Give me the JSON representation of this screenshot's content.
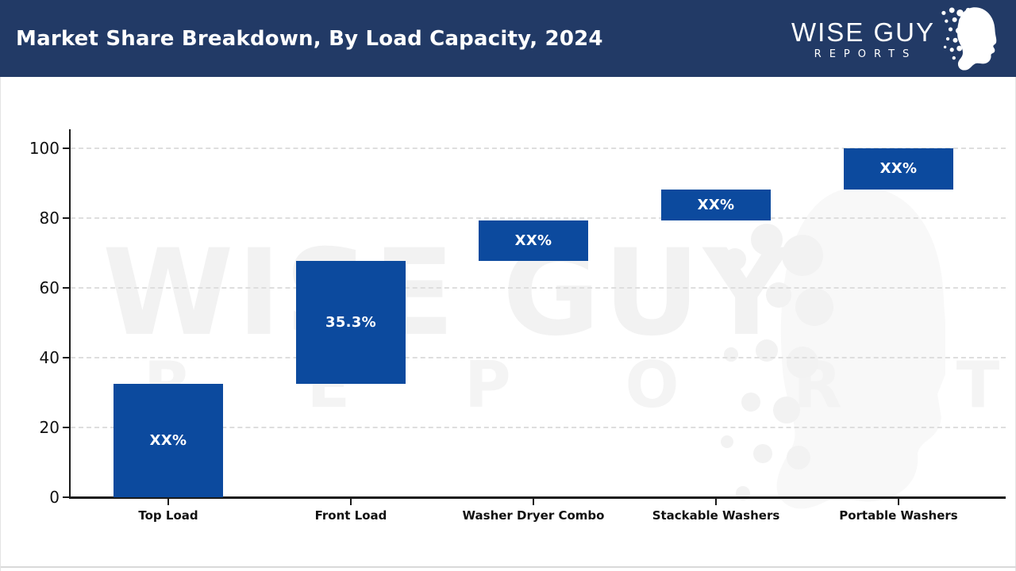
{
  "header": {
    "title": "Market Share Breakdown, By Load Capacity, 2024",
    "bg_color": "#223a66",
    "logo": {
      "line1": "WISE GUY",
      "line2": "REPORTS"
    }
  },
  "watermark": {
    "line1": "WISE GUY",
    "line2": "R E P O R T S"
  },
  "chart_data": {
    "type": "bar",
    "subtype": "waterfall",
    "title": "Market Share Breakdown, By Load Capacity, 2024",
    "xlabel": "",
    "ylabel": "",
    "ylim": [
      0,
      107
    ],
    "y_ticks": [
      0,
      20,
      40,
      60,
      80,
      100
    ],
    "grid": "horizontal dashed",
    "legend": "none",
    "bar_color": "#0c4a9e",
    "bar_label_color": "#ffffff",
    "categories": [
      "Top Load",
      "Front Load",
      "Washer Dryer Combo",
      "Stackable Washers",
      "Portable Washers"
    ],
    "segments": [
      {
        "category": "Top Load",
        "start": 0,
        "end": 32.4,
        "label": "XX%"
      },
      {
        "category": "Front Load",
        "start": 32.4,
        "end": 67.7,
        "label": "35.3%"
      },
      {
        "category": "Washer Dryer Combo",
        "start": 67.7,
        "end": 79.4,
        "label": "XX%"
      },
      {
        "category": "Stackable Washers",
        "start": 79.4,
        "end": 88.2,
        "label": "XX%"
      },
      {
        "category": "Portable Washers",
        "start": 88.2,
        "end": 100,
        "label": "XX%"
      }
    ]
  }
}
